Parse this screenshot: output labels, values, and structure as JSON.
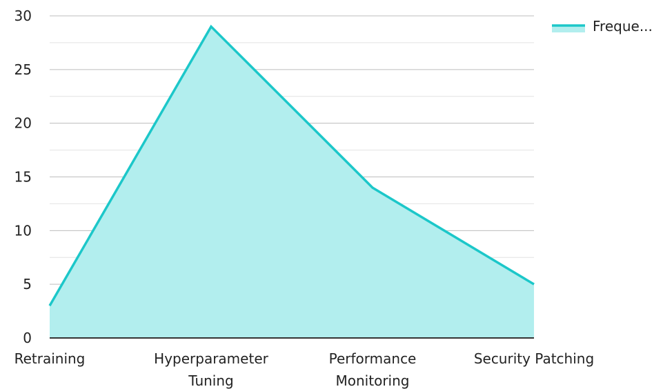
{
  "chart_data": {
    "type": "area",
    "categories": [
      [
        "Retraining"
      ],
      [
        "Hyperparameter",
        "Tuning"
      ],
      [
        "Performance",
        "Monitoring"
      ],
      [
        "Security Patching"
      ]
    ],
    "series": [
      {
        "name": "Freque...",
        "values": [
          3,
          29,
          14,
          5
        ]
      }
    ],
    "ylim": [
      0,
      30
    ],
    "yticks": [
      0,
      5,
      10,
      15,
      20,
      25,
      30
    ],
    "grid": true,
    "legend_position": "top-right",
    "colors": {
      "line": "#1cc7c9",
      "fill": "#b2eeee",
      "grid": "#c8c8c8",
      "axis": "#333333"
    }
  }
}
